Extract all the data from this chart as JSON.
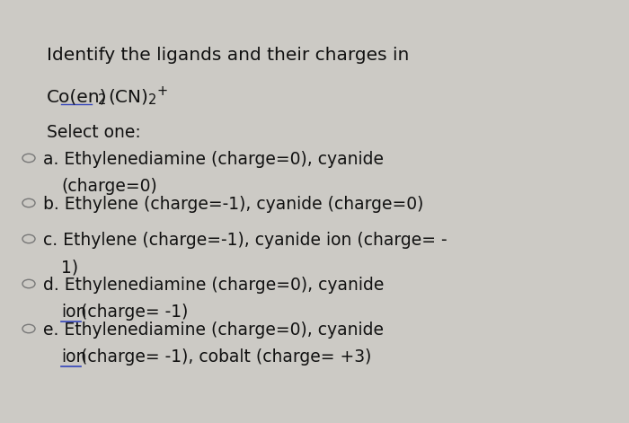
{
  "background_color": "#cccac5",
  "title_line1": "Identify the ligands and their charges in",
  "select_one": "Select one:",
  "options": [
    {
      "label": "a. ",
      "line1": "Ethylenediamine (charge=0), cyanide",
      "line2": "(charge=0)",
      "underline_line2": false
    },
    {
      "label": "b. ",
      "line1": "Ethylene (charge=-1), cyanide (charge=0)",
      "line2": null,
      "underline_line2": false
    },
    {
      "label": "c. ",
      "line1": "Ethylene (charge=-1), cyanide ion (charge= -",
      "line2": "1)",
      "underline_line2": false
    },
    {
      "label": "d. ",
      "line1": "Ethylenediamine (charge=0), cyanide",
      "line2": "ion(charge= -1)",
      "underline_line2": true
    },
    {
      "label": "e. ",
      "line1": "Ethylenediamine (charge=0), cyanide",
      "line2": "ion(charge= -1), cobalt (charge= +3)",
      "underline_line2": true
    }
  ],
  "font_size_title": 14.5,
  "font_size_body": 13.5,
  "text_color": "#111111",
  "radio_color": "#777777",
  "underline_color": "#3344bb",
  "fig_width": 7.0,
  "fig_height": 4.71,
  "dpi": 100
}
